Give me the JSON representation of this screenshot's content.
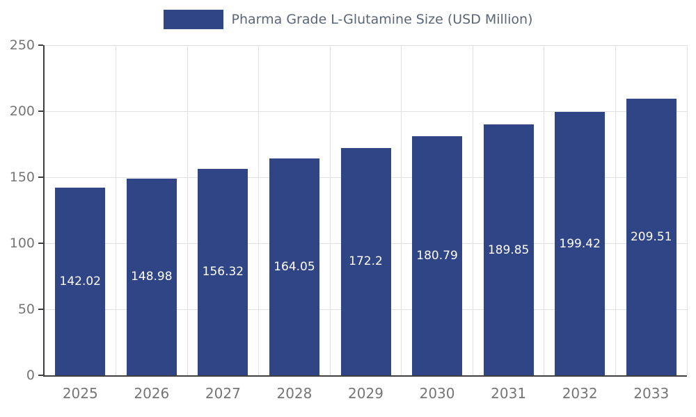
{
  "legend": {
    "label": "Pharma Grade L-Glutamine Size (USD Million)",
    "swatch_color": "#2f4585"
  },
  "chart_data": {
    "type": "bar",
    "title": "Pharma Grade L-Glutamine Size (USD Million)",
    "categories": [
      "2025",
      "2026",
      "2027",
      "2028",
      "2029",
      "2030",
      "2031",
      "2032",
      "2033"
    ],
    "values": [
      142.02,
      148.98,
      156.32,
      164.05,
      172.2,
      180.79,
      189.85,
      199.42,
      209.51
    ],
    "value_labels": [
      "142.02",
      "148.98",
      "156.32",
      "164.05",
      "172.2",
      "180.79",
      "189.85",
      "199.42",
      "209.51"
    ],
    "xlabel": "",
    "ylabel": "",
    "ylim": [
      0,
      250
    ],
    "yticks": [
      0,
      50,
      100,
      150,
      200,
      250
    ],
    "grid": true,
    "legend_position": "top",
    "colors": {
      "bar": "#2f4585",
      "bar_label": "#ffffff",
      "axis_line": "#3f3f3f",
      "grid_line": "#e0e0e0",
      "tick_label": "#757575",
      "legend_text": "#5a6577",
      "background": "#ffffff"
    }
  }
}
